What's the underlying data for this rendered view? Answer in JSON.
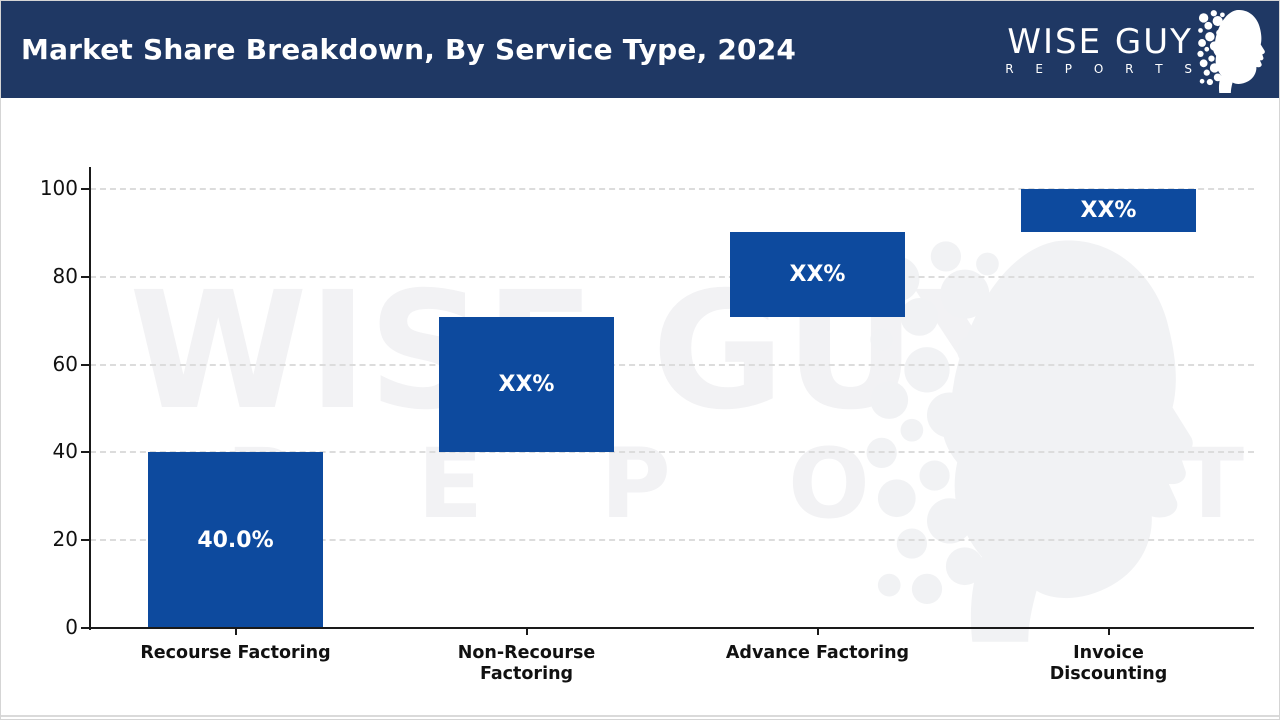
{
  "header": {
    "title": "Market Share Breakdown, By Service Type, 2024",
    "bg_color": "#1f3864",
    "logo": {
      "line1": "WISE GUY",
      "line2": "R E P O R T S"
    }
  },
  "watermark": {
    "line1": "WISE GUY",
    "line2": "R E P O R T S"
  },
  "chart_data": {
    "type": "bar",
    "subtype": "waterfall",
    "title": "Market Share Breakdown, By Service Type, 2024",
    "xlabel": "",
    "ylabel": "",
    "categories": [
      "Recourse Factoring",
      "Non-Recourse\nFactoring",
      "Advance Factoring",
      "Invoice\nDiscounting"
    ],
    "segments": [
      {
        "category": "Recourse Factoring",
        "start": 0,
        "end": 40,
        "label": "40.0%"
      },
      {
        "category": "Non-Recourse Factoring",
        "start": 40,
        "end": 70.8,
        "label": "XX%"
      },
      {
        "category": "Advance Factoring",
        "start": 70.8,
        "end": 90.3,
        "label": "XX%"
      },
      {
        "category": "Invoice Discounting",
        "start": 90.3,
        "end": 100,
        "label": "XX%"
      }
    ],
    "yticks": [
      0,
      20,
      40,
      60,
      80,
      100
    ],
    "ylim": [
      0,
      105
    ],
    "grid": "horizontal-dashed",
    "legend": "none",
    "bar_color": "#0d4a9e",
    "bar_label_color": "#ffffff",
    "axis_color": "#1a1a1a",
    "grid_color": "#dcdcdc"
  }
}
